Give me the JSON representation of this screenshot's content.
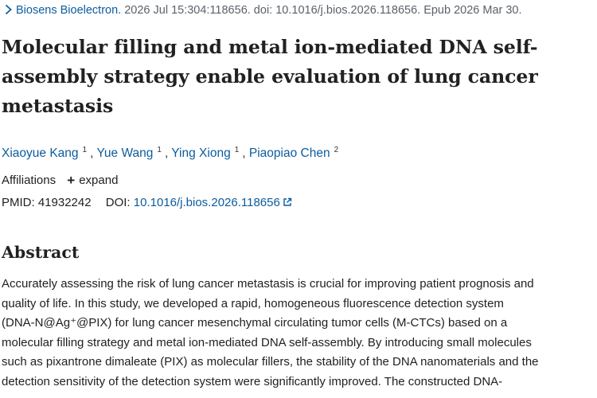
{
  "citation": {
    "journal": "Biosens Bioelectron.",
    "details": " 2026 Jul 15:304:118656. doi: 10.1016/j.bios.2026.118656. Epub 2026 Mar 30."
  },
  "title_lines": [
    "Molecular filling and metal ion-mediated DNA self-",
    "assembly strategy enable evaluation of lung cancer",
    "metastasis"
  ],
  "authors": [
    {
      "name": "Xiaoyue Kang",
      "aff": "1"
    },
    {
      "name": "Yue Wang",
      "aff": "1"
    },
    {
      "name": "Ying Xiong",
      "aff": "1"
    },
    {
      "name": "Piaopiao Chen",
      "aff": "2"
    }
  ],
  "affiliations": {
    "label": "Affiliations",
    "expand_label": "expand"
  },
  "identifiers": {
    "pmid_label": "PMID:",
    "pmid": "41932242",
    "doi_label": "DOI:",
    "doi": "10.1016/j.bios.2026.118656"
  },
  "abstract": {
    "heading": "Abstract",
    "lines": [
      "Accurately assessing the risk of lung cancer metastasis is crucial for improving patient prognosis and",
      "quality of life. In this study, we developed a rapid, homogeneous fluorescence detection system",
      "(DNA-N@Ag⁺@PIX) for lung cancer mesenchymal circulating tumor cells (M-CTCs) based on a",
      "molecular filling strategy and metal ion-mediated DNA self-assembly. By introducing small molecules",
      "such as pixantrone dimaleate (PIX) as molecular fillers, the stability of the DNA nanomaterials and the",
      "detection sensitivity of the detection system were significantly improved. The constructed DNA-"
    ]
  },
  "colors": {
    "link": "#0b5c9e",
    "text": "#212121",
    "muted": "#5b616b"
  },
  "icons": {
    "citation": "chevron-right-icon",
    "expand": "plus-icon",
    "doi": "external-link-icon"
  }
}
